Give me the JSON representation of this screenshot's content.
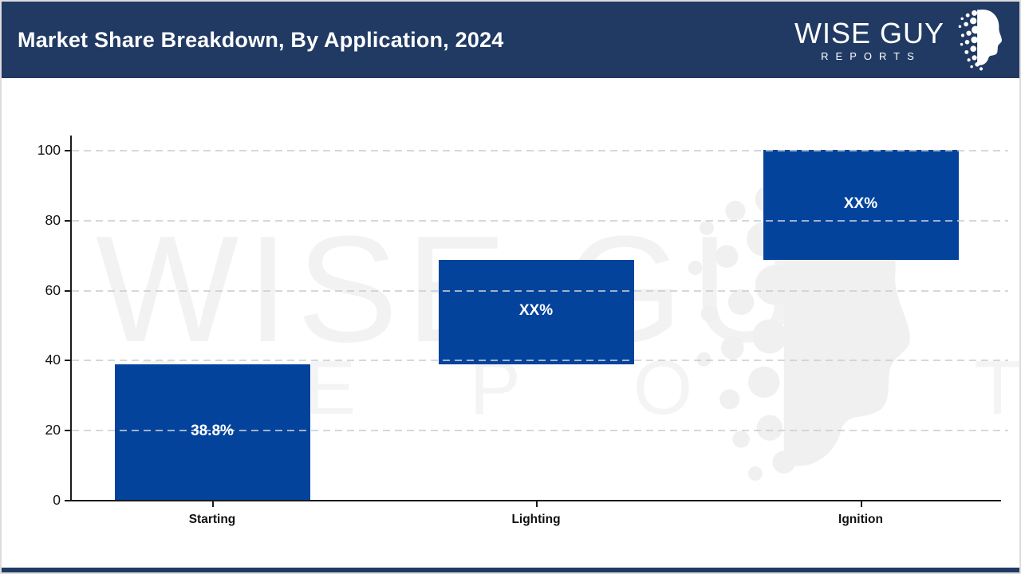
{
  "header": {
    "bg_color": "#213a63"
  },
  "logo": {
    "name": "WISE GUY",
    "sub": "REPORTS"
  },
  "watermark": {
    "line1": "WISE GUY",
    "line2": "R E P O R T S"
  },
  "chart_data": {
    "type": "bar",
    "variant": "waterfall-floating-bars",
    "title": "Market Share Breakdown, By Application, 2024",
    "categories": [
      "Starting",
      "Lighting",
      "Ignition"
    ],
    "series": [
      {
        "name": "Market Share",
        "segments": [
          {
            "category": "Starting",
            "start": 0,
            "end": 38.8,
            "label": "38.8%"
          },
          {
            "category": "Lighting",
            "start": 38.8,
            "end": 68.6,
            "label": "XX%"
          },
          {
            "category": "Ignition",
            "start": 68.6,
            "end": 100,
            "label": "XX%"
          }
        ]
      }
    ],
    "yticks": [
      0,
      20,
      40,
      60,
      80,
      100
    ],
    "ylim": [
      0,
      100
    ],
    "xlabel": "",
    "ylabel": "",
    "bar_color": "#04439c",
    "bar_label_color": "#ffffff",
    "grid": "horizontal-dashed",
    "gridlines_over_bars": true,
    "legend": "none"
  }
}
